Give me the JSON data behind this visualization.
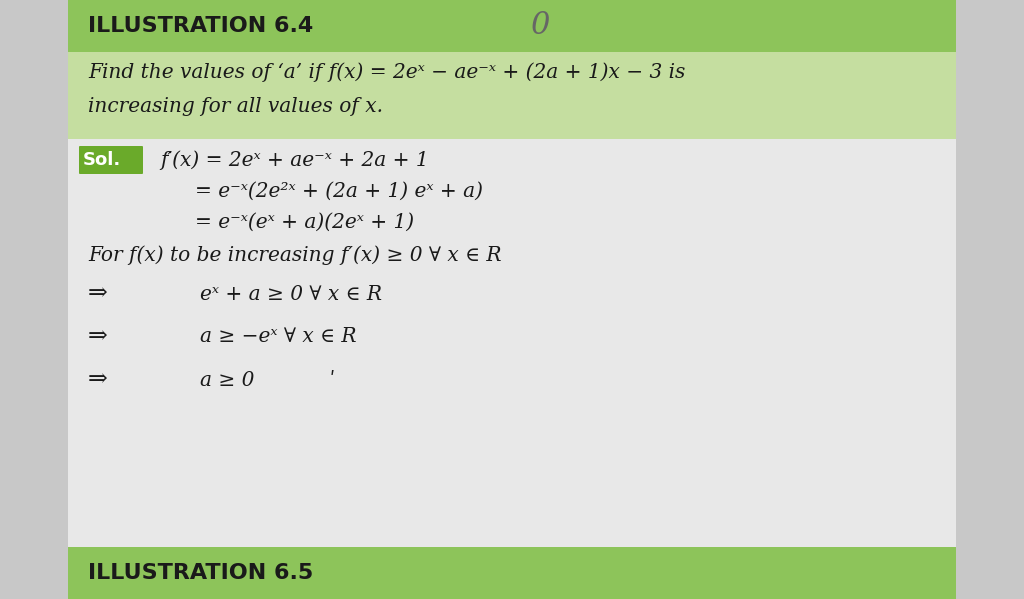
{
  "outer_bg": "#c8c8c8",
  "page_bg": "#e8e8e8",
  "header_green_bg": "#8dc45a",
  "problem_green_bg": "#c5dea0",
  "sol_badge_bg": "#6aaa2a",
  "bottom_green_bg": "#8dc45a",
  "title": "ILLUSTRATION 6.4",
  "bottom_title": "ILLUSTRATION 6.5",
  "circle": "0",
  "prob1": "Find the values of ‘a’ if f(x) = 2eˣ − ae⁻ˣ + (2a + 1)x − 3 is",
  "prob2": "increasing for all values of x.",
  "sol_text": "Sol.",
  "line1": "f′(x) = 2eˣ + ae⁻ˣ + 2a + 1",
  "line2": "= e⁻ˣ(2e²ˣ + (2a + 1) eˣ + a)",
  "line3": "= e⁻ˣ(eˣ + a)(2eˣ + 1)",
  "for_line": "For f(x) to be increasing f′(x) ≥ 0 ∀ x ∈ R",
  "arr1": "eˣ + a ≥ 0 ∀ x ∈ R",
  "arr2": "a ≥ −eˣ ∀ x ∈ R",
  "arr3": "a ≥ 0",
  "arrow": "⇒",
  "tick": "ʹ",
  "text_dark": "#1a1a1a",
  "sol_white": "#ffffff"
}
